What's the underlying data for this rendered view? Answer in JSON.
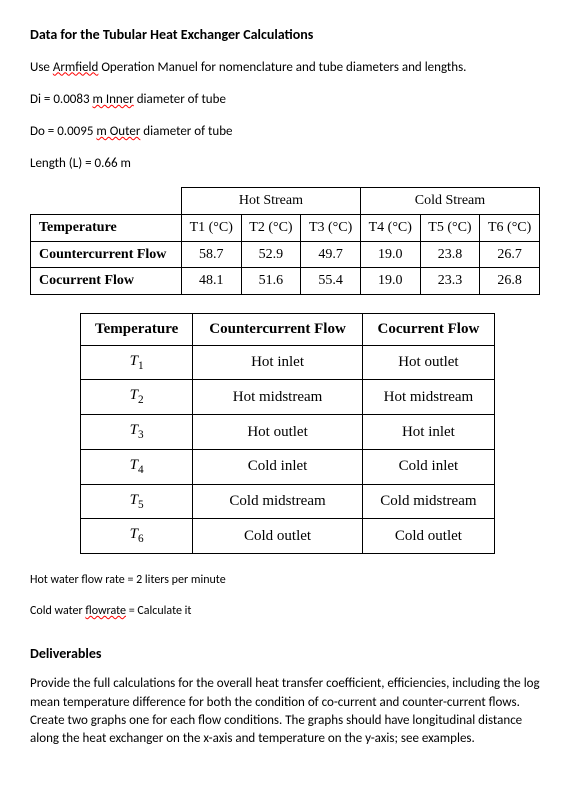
{
  "title": "Data for the Tubular Heat Exchanger Calculations",
  "intro": {
    "pre": "Use ",
    "wavy": "Armfield",
    "post": " Operation Manuel for nomenclature and tube diameters and lengths."
  },
  "di": {
    "pre": "Di = 0.0083 ",
    "wavy": "m Inner",
    "post": " diameter of tube"
  },
  "do_": {
    "pre": "Do = 0.0095 ",
    "wavy": "m Outer",
    "post": " diameter of tube"
  },
  "length": "Length (L) = 0.66 m",
  "t1": {
    "hotHeader": "Hot Stream",
    "coldHeader": "Cold Stream",
    "rowLabel": "Temperature",
    "cols": [
      "T1 (°C)",
      "T2 (°C)",
      "T3 (°C)",
      "T4 (°C)",
      "T5 (°C)",
      "T6 (°C)"
    ],
    "r1Label": "Countercurrent Flow",
    "r1": [
      "58.7",
      "52.9",
      "49.7",
      "19.0",
      "23.8",
      "26.7"
    ],
    "r2Label": "Cocurrent Flow",
    "r2": [
      "48.1",
      "51.6",
      "55.4",
      "19.0",
      "23.3",
      "26.8"
    ]
  },
  "t2": {
    "h1": "Temperature",
    "h2": "Countercurrent Flow",
    "h3": "Cocurrent Flow",
    "rows": [
      {
        "t": "T",
        "n": "1",
        "cc": "Hot inlet",
        "co": "Hot outlet"
      },
      {
        "t": "T",
        "n": "2",
        "cc": "Hot midstream",
        "co": "Hot midstream"
      },
      {
        "t": "T",
        "n": "3",
        "cc": "Hot outlet",
        "co": "Hot inlet"
      },
      {
        "t": "T",
        "n": "4",
        "cc": "Cold inlet",
        "co": "Cold inlet"
      },
      {
        "t": "T",
        "n": "5",
        "cc": "Cold midstream",
        "co": "Cold midstream"
      },
      {
        "t": "T",
        "n": "6",
        "cc": "Cold outlet",
        "co": "Cold outlet"
      }
    ]
  },
  "hotFlow": "Hot water flow rate = 2 liters per minute",
  "coldFlow": {
    "pre": "Cold water ",
    "wavy": "flowrate",
    "post": " = Calculate it"
  },
  "deliverablesTitle": "Deliverables",
  "deliverablesBody": "Provide the full calculations for the overall heat transfer coefficient, efficiencies, including the log mean temperature difference for both the condition of co-current and counter-current flows.  Create two graphs one for each flow conditions.  The graphs should have longitudinal distance along the heat exchanger on the x-axis and temperature on the y-axis; see examples."
}
